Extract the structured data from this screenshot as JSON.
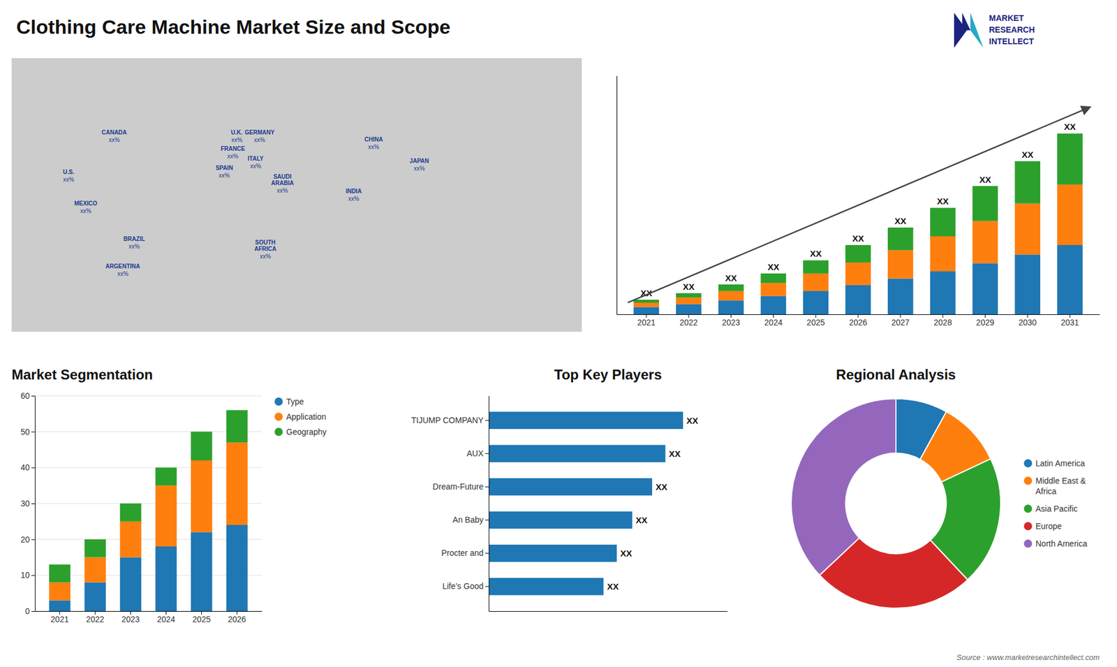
{
  "title": "Clothing Care Machine Market Size and Scope",
  "annotations": [
    "Source : www.marketresearchintellect.com",
    "MARKET",
    "RESEARCH",
    "INTELLECT"
  ],
  "chart_data": [
    {
      "type": "map",
      "annotations": [
        {
          "text": "CANADA",
          "label": "xx%"
        },
        {
          "text": "U.S.",
          "label": "xx%"
        },
        {
          "text": "MEXICO",
          "label": "xx%"
        },
        {
          "text": "BRAZIL",
          "label": "xx%"
        },
        {
          "text": "ARGENTINA",
          "label": "xx%"
        },
        {
          "text": "U.K.",
          "label": "xx%"
        },
        {
          "text": "FRANCE",
          "label": "xx%"
        },
        {
          "text": "SPAIN",
          "label": "xx%"
        },
        {
          "text": "GERMANY",
          "label": "xx%"
        },
        {
          "text": "ITALY",
          "label": "xx%"
        },
        {
          "text": "SAUDI\nARABIA",
          "label": "xx%"
        },
        {
          "text": "SOUTH\nAFRICA",
          "label": "xx%"
        },
        {
          "text": "CHINA",
          "label": "xx%"
        },
        {
          "text": "INDIA",
          "label": "xx%"
        },
        {
          "text": "JAPAN",
          "label": "xx%"
        }
      ]
    },
    {
      "type": "bar",
      "stacked": true,
      "categories": [
        "2021",
        "2022",
        "2023",
        "2024",
        "2025",
        "2026",
        "2027",
        "2028",
        "2029",
        "2030",
        "2031"
      ],
      "series": [
        {
          "values": [
            1.0,
            1.4,
            1.9,
            2.5,
            3.2,
            4.0,
            4.9,
            5.9,
            7.0,
            8.2,
            9.5
          ]
        },
        {
          "values": [
            0.6,
            0.9,
            1.3,
            1.8,
            2.4,
            3.1,
            3.9,
            4.8,
            5.8,
            7.0,
            8.3
          ]
        },
        {
          "values": [
            0.4,
            0.6,
            0.9,
            1.3,
            1.8,
            2.4,
            3.1,
            3.9,
            4.8,
            5.8,
            7.0
          ]
        }
      ],
      "ylim": [
        0,
        32.736
      ],
      "tick_labels": "x",
      "annotations": [
        "XX",
        "XX",
        "XX",
        "XX",
        "XX",
        "XX",
        "XX",
        "XX",
        "XX",
        "XX",
        "XX"
      ]
    },
    {
      "type": "bar",
      "stacked": true,
      "title": "Market Segmentation",
      "categories": [
        "2021",
        "2022",
        "2023",
        "2024",
        "2025",
        "2026"
      ],
      "series": [
        {
          "name": "Type",
          "values": [
            3,
            8,
            15,
            18,
            22,
            24
          ]
        },
        {
          "name": "Application",
          "values": [
            5,
            7,
            10,
            17,
            20,
            23
          ]
        },
        {
          "name": "Geography",
          "values": [
            5,
            5,
            5,
            5,
            8,
            9
          ]
        }
      ],
      "ylim": [
        0,
        60
      ],
      "yticks": [
        0,
        10,
        20,
        30,
        40,
        50,
        60
      ],
      "grid": true,
      "legend": "right"
    },
    {
      "type": "bar",
      "orientation": "horizontal",
      "title": "Top Key Players",
      "categories": [
        "TIJUMP COMPANY",
        "AUX",
        "Dream-Future",
        "An Baby",
        "Procter and",
        "Life’s Good"
      ],
      "values": [
        0.88,
        0.8,
        0.74,
        0.65,
        0.58,
        0.52
      ],
      "value_labels": [
        "XX",
        "XX",
        "XX",
        "XX",
        "XX",
        "XX"
      ],
      "data_labels": true,
      "xlim": [
        0,
        1.08
      ],
      "tick_labels": "y"
    },
    {
      "type": "pie",
      "title": "Regional Analysis",
      "categories": [
        "Latin America",
        "Middle East &\nAfrica",
        "Asia Pacific",
        "Europe",
        "North America"
      ],
      "values": [
        8,
        10,
        20,
        25,
        37
      ],
      "legend": "right"
    }
  ]
}
